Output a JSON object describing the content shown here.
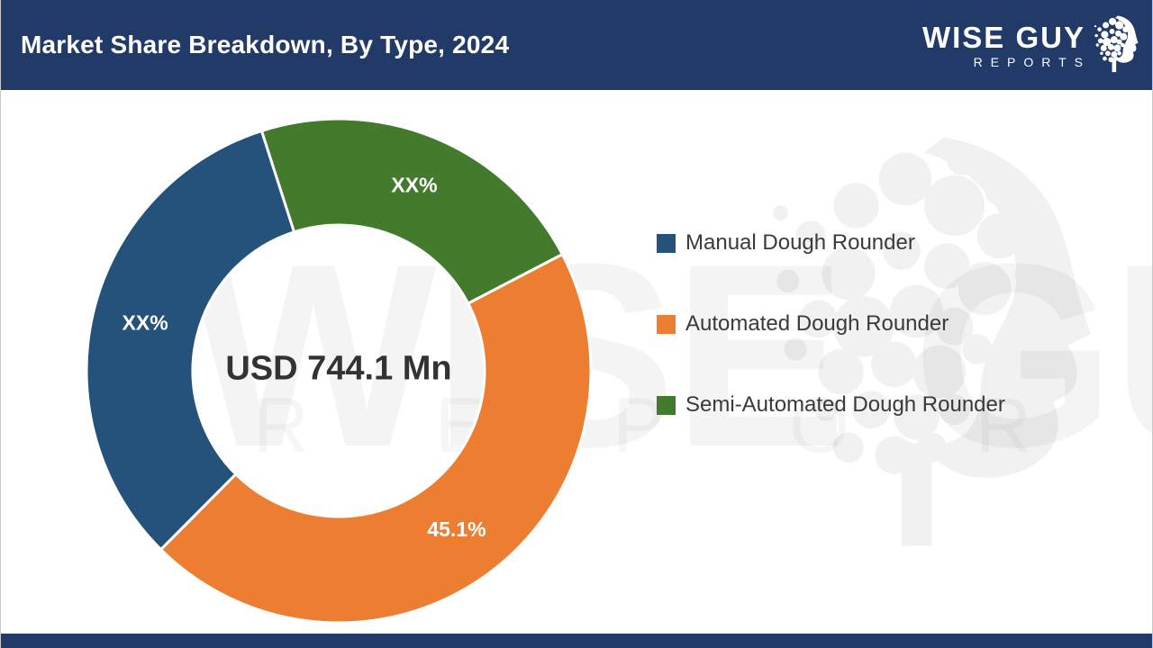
{
  "header": {
    "title": "Market Share Breakdown, By Type, 2024",
    "logo": {
      "line1": "WISE GUY",
      "line2": "REPORTS",
      "head_icon": "dotted-face-profile"
    }
  },
  "watermark": {
    "text": "WISE GUY",
    "reports": "R E P O R T S",
    "head_icon": "dotted-face-profile"
  },
  "colors": {
    "header_bg": "#213A67",
    "footer_bg": "#213A67",
    "title_text": "#ffffff",
    "center_text": "#333333",
    "legend_text": "#3a3a3a",
    "slice_blue": "#24527A",
    "slice_orange": "#ED7D31",
    "slice_green": "#447A2C"
  },
  "chart_data": {
    "type": "pie",
    "variant": "donut",
    "title": "Market Share Breakdown, By Type, 2024",
    "center_label": "USD 744.1 Mn",
    "start_angle_deg": -17.8,
    "outer_radius": 280,
    "inner_radius": 162,
    "slices": [
      {
        "label": "Semi-Automated Dough Rounder",
        "display": "XX%",
        "pct": 22.3,
        "color": "#447A2C"
      },
      {
        "label": "Automated Dough Rounder",
        "display": "45.1%",
        "pct": 45.1,
        "color": "#ED7D31"
      },
      {
        "label": "Manual Dough Rounder",
        "display": "XX%",
        "pct": 32.6,
        "color": "#24527A"
      }
    ],
    "legend": [
      {
        "label": "Manual Dough Rounder",
        "color": "#24527A"
      },
      {
        "label": "Automated Dough Rounder",
        "color": "#ED7D31"
      },
      {
        "label": "Semi-Automated Dough Rounder",
        "color": "#447A2C"
      }
    ],
    "legend_position": "right"
  }
}
